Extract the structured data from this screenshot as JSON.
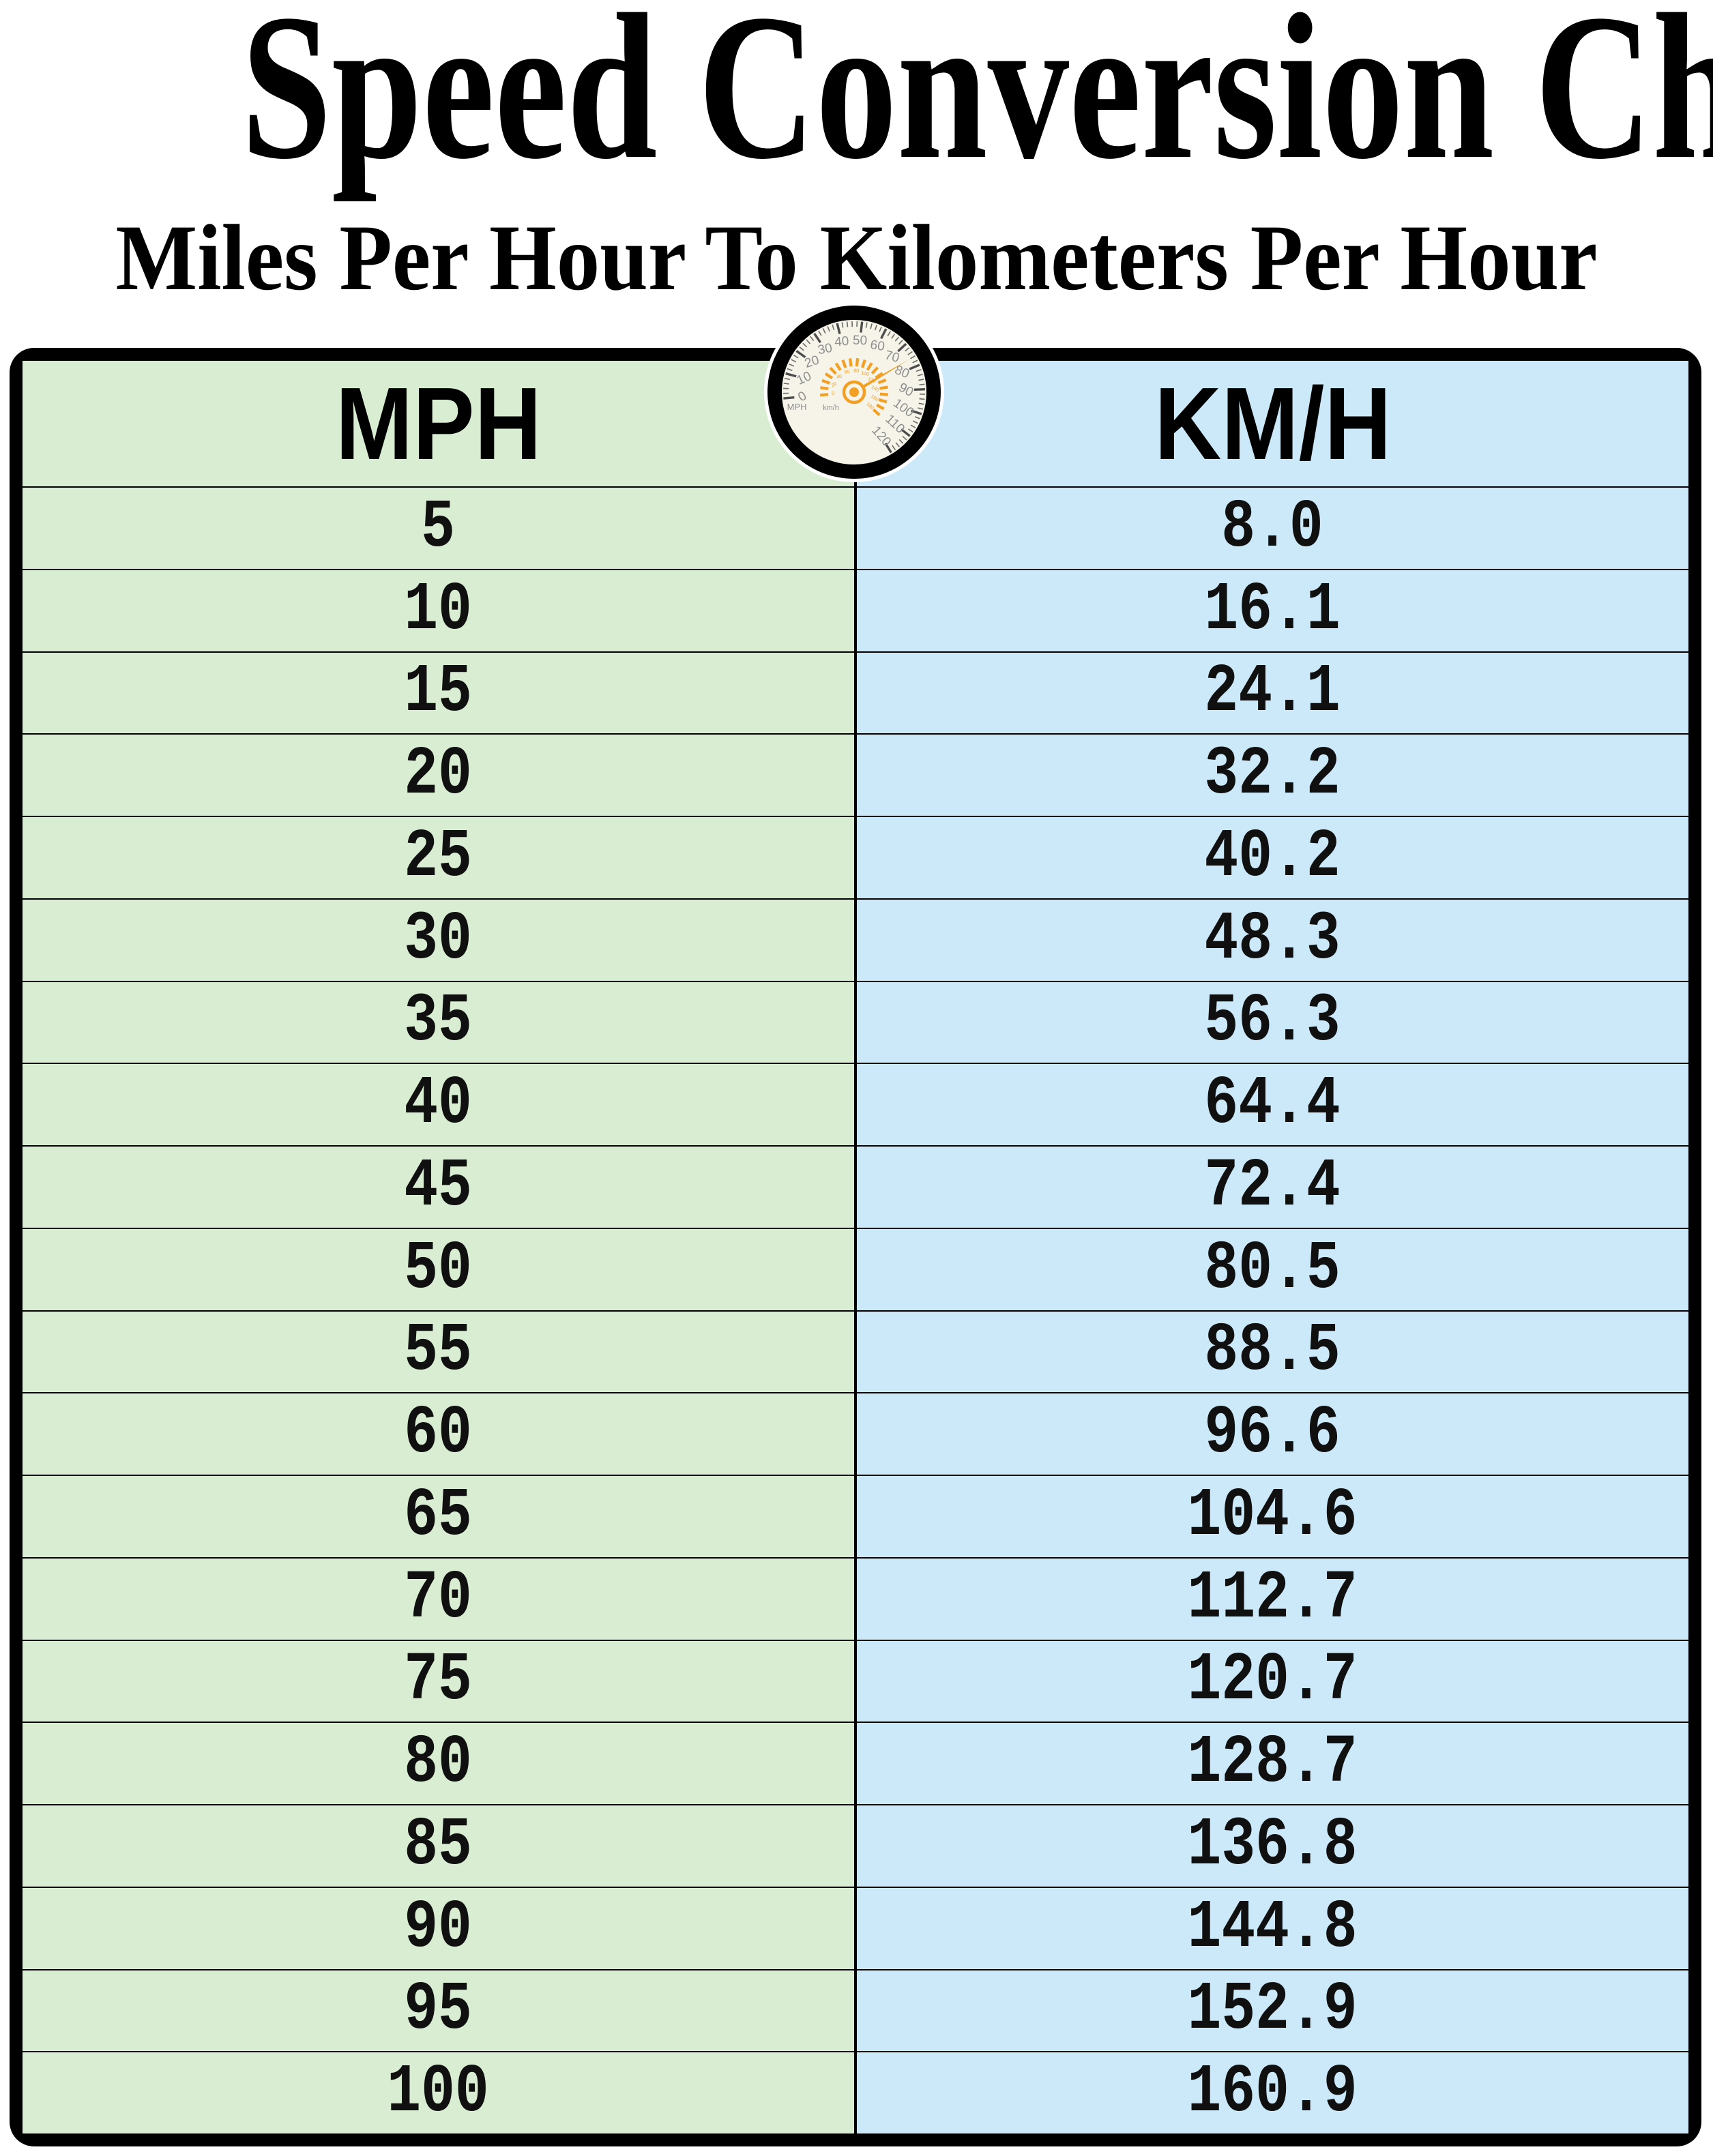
{
  "title": "Speed Conversion Chart",
  "subtitle": "Miles Per Hour To Kilometers Per Hour",
  "table": {
    "headers": {
      "mph": "MPH",
      "kmh": "KM/H"
    },
    "rows": [
      {
        "mph": "5",
        "kmh": "8.0"
      },
      {
        "mph": "10",
        "kmh": "16.1"
      },
      {
        "mph": "15",
        "kmh": "24.1"
      },
      {
        "mph": "20",
        "kmh": "32.2"
      },
      {
        "mph": "25",
        "kmh": "40.2"
      },
      {
        "mph": "30",
        "kmh": "48.3"
      },
      {
        "mph": "35",
        "kmh": "56.3"
      },
      {
        "mph": "40",
        "kmh": "64.4"
      },
      {
        "mph": "45",
        "kmh": "72.4"
      },
      {
        "mph": "50",
        "kmh": "80.5"
      },
      {
        "mph": "55",
        "kmh": "88.5"
      },
      {
        "mph": "60",
        "kmh": "96.6"
      },
      {
        "mph": "65",
        "kmh": "104.6"
      },
      {
        "mph": "70",
        "kmh": "112.7"
      },
      {
        "mph": "75",
        "kmh": "120.7"
      },
      {
        "mph": "80",
        "kmh": "128.7"
      },
      {
        "mph": "85",
        "kmh": "136.8"
      },
      {
        "mph": "90",
        "kmh": "144.8"
      },
      {
        "mph": "95",
        "kmh": "152.9"
      },
      {
        "mph": "100",
        "kmh": "160.9"
      }
    ]
  },
  "colors": {
    "mph_column": "#d9edd3",
    "kmh_column": "#cbe9f8",
    "frame": "#000000",
    "row_line": "#000000"
  },
  "gauge": {
    "outer": {
      "unit": "MPH",
      "max": 120,
      "major_step": 10,
      "minor_step": 2
    },
    "inner": {
      "unit": "km/h",
      "max": 180,
      "step": 10,
      "label_step": 20,
      "mph_per_unit": 1.60934
    },
    "dial": {
      "start_angle": -95,
      "sweep": 243.5
    },
    "needle_mph": 76,
    "colors": {
      "face": "#f6f3e8",
      "ring": "#000000",
      "tick_major": "#4d4d4d",
      "tick_minor": "#6b6b6b",
      "label": "#8f8f8f",
      "accent": "#f2a024",
      "halo": "#ffffff"
    }
  },
  "chart_data": {
    "type": "table",
    "title": "Speed Conversion Chart",
    "subtitle": "Miles Per Hour To Kilometers Per Hour",
    "columns": [
      "MPH",
      "KM/H"
    ],
    "mph": [
      5,
      10,
      15,
      20,
      25,
      30,
      35,
      40,
      45,
      50,
      55,
      60,
      65,
      70,
      75,
      80,
      85,
      90,
      95,
      100
    ],
    "kmh": [
      8.0,
      16.1,
      24.1,
      32.2,
      40.2,
      48.3,
      56.3,
      64.4,
      72.4,
      80.5,
      88.5,
      96.6,
      104.6,
      112.7,
      120.7,
      128.7,
      136.8,
      144.8,
      152.9,
      160.9
    ]
  }
}
